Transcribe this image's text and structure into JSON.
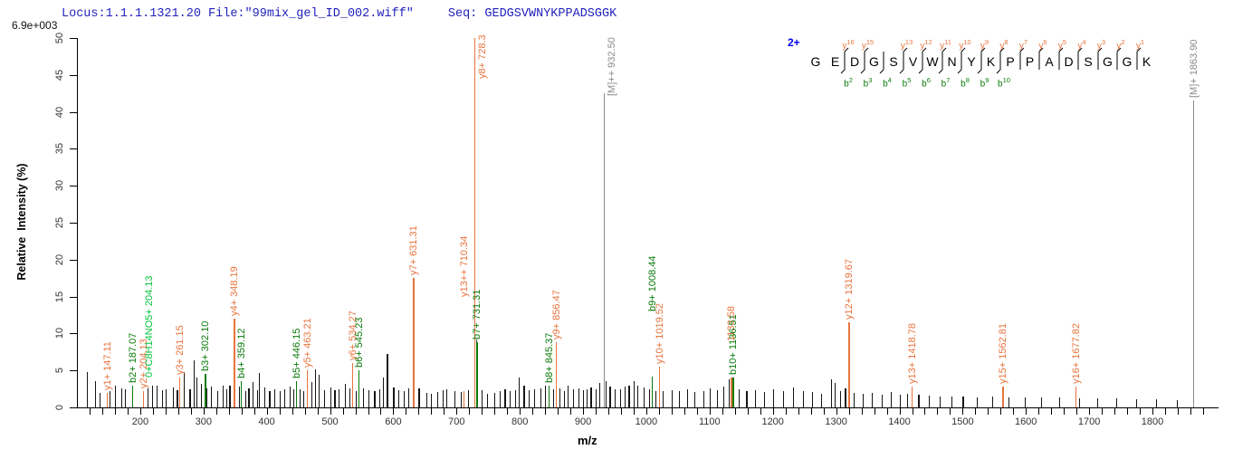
{
  "header": {
    "locus_file": "Locus:1.1.1.1321.20 File:\"99mix_gel_ID_002.wiff\"",
    "seq_text": "Seq: GEDGSVWNYKPPADSGGK",
    "max_intensity": "6.9e+003"
  },
  "axes": {
    "y_title": "Relative  Intensity (%)",
    "x_title": "m/z",
    "y_ticks": [
      0,
      5,
      10,
      15,
      20,
      25,
      30,
      35,
      40,
      45,
      50
    ],
    "x_labeled_ticks": [
      200,
      300,
      400,
      500,
      600,
      700,
      800,
      900,
      1000,
      1100,
      1200,
      1300,
      1400,
      1500,
      1600,
      1700,
      1800
    ],
    "x_minor_step": 20,
    "x_range": [
      100,
      1893
    ],
    "y_range": [
      0,
      50
    ]
  },
  "fragment_diagram": {
    "charge": "2+",
    "residues": [
      "G",
      "E",
      "D",
      "G",
      "S",
      "V",
      "W",
      "N",
      "Y",
      "K",
      "P",
      "P",
      "A",
      "D",
      "S",
      "G",
      "G",
      "K"
    ],
    "cleavages": [
      {
        "after": 2,
        "y": "y16",
        "b": "b2"
      },
      {
        "after": 3,
        "y": "y15",
        "b": "b3"
      },
      {
        "after": 4,
        "y": null,
        "b": "b4"
      },
      {
        "after": 5,
        "y": "y13",
        "b": "b5"
      },
      {
        "after": 6,
        "y": "y12",
        "b": "b6"
      },
      {
        "after": 7,
        "y": "y11",
        "b": "b7"
      },
      {
        "after": 8,
        "y": "y10",
        "b": "b8"
      },
      {
        "after": 9,
        "y": "y9",
        "b": "b9"
      },
      {
        "after": 10,
        "y": "y8",
        "b": "b10"
      },
      {
        "after": 11,
        "y": "y7",
        "b": null
      },
      {
        "after": 12,
        "y": "y6",
        "b": null
      },
      {
        "after": 13,
        "y": "y5",
        "b": null
      },
      {
        "after": 14,
        "y": "y4",
        "b": null
      },
      {
        "after": 15,
        "y": "y3",
        "b": null
      },
      {
        "after": 16,
        "y": "y2",
        "b": null
      },
      {
        "after": 17,
        "y": "y1",
        "b": null
      }
    ]
  },
  "colors": {
    "header_blue": "#2222bb",
    "y_ion_orange": "#e8743e",
    "b_ion_green": "#0a7a0a",
    "formula_lime": "#00c53c",
    "precursor_gray": "#8a8a8a",
    "background_peak": "#151515",
    "charge_blue": "#0000ee"
  },
  "chart_data": {
    "type": "ms2_stick_spectrum",
    "xlabel": "m/z",
    "ylabel": "Relative  Intensity (%)",
    "xlim": [
      100,
      1893
    ],
    "ylim": [
      0,
      50
    ],
    "labeled_peaks": [
      {
        "mz": 147.11,
        "intensity": 2.0,
        "label": "y1+ 147.11",
        "series": "y"
      },
      {
        "mz": 187.07,
        "intensity": 3.0,
        "label": "b2+ 187.07",
        "series": "b"
      },
      {
        "mz": 204.13,
        "intensity": 2.2,
        "label": "y2+ 204.13",
        "series": "y"
      },
      {
        "mz": 213.0,
        "intensity": 0,
        "label": "0+C8H14NO5+ 204.13",
        "series": "other",
        "no_line": true,
        "label_bottom": 4
      },
      {
        "mz": 261.15,
        "intensity": 4.0,
        "label": "y3+ 261.15",
        "series": "y"
      },
      {
        "mz": 302.1,
        "intensity": 4.5,
        "label": "b3+ 302.10",
        "series": "b"
      },
      {
        "mz": 348.19,
        "intensity": 12.0,
        "label": "y4+ 348.19",
        "series": "y"
      },
      {
        "mz": 359.12,
        "intensity": 3.5,
        "label": "b4+ 359.12",
        "series": "b"
      },
      {
        "mz": 446.15,
        "intensity": 3.5,
        "label": "b5+ 446.15",
        "series": "b"
      },
      {
        "mz": 463.21,
        "intensity": 5.0,
        "label": "y5+ 463.21",
        "series": "y"
      },
      {
        "mz": 534.27,
        "intensity": 6.0,
        "label": "y6+ 534.27",
        "series": "y"
      },
      {
        "mz": 545.23,
        "intensity": 5.0,
        "label": "b6+ 545.23",
        "series": "b"
      },
      {
        "mz": 631.31,
        "intensity": 17.5,
        "label": "y7+ 631.31",
        "series": "y"
      },
      {
        "mz": 710.34,
        "intensity": 2.2,
        "label": "y13++ 710.34",
        "series": "y",
        "label_bottom": 15
      },
      {
        "mz": 728.3,
        "intensity": 50.0,
        "label": "y8+ 728.3",
        "series": "y"
      },
      {
        "mz": 730.6,
        "intensity": 9.5,
        "label": null,
        "series": "dashed"
      },
      {
        "mz": 731.31,
        "intensity": 8.8,
        "label": "b7+ 731.31",
        "series": "b"
      },
      {
        "mz": 845.37,
        "intensity": 3.0,
        "label": "b8+ 845.37",
        "series": "b"
      },
      {
        "mz": 856.47,
        "intensity": 8.8,
        "label": "y9+ 856.47",
        "series": "y"
      },
      {
        "mz": 932.5,
        "intensity": 42.5,
        "label": "[M]++ 932.50",
        "series": "precursor"
      },
      {
        "mz": 1008.44,
        "intensity": 4.2,
        "label": "b9+ 1008.44",
        "series": "b",
        "label_bottom": 13
      },
      {
        "mz": 1019.52,
        "intensity": 5.5,
        "label": "y10+ 1019.52",
        "series": "y"
      },
      {
        "mz": 1133.58,
        "intensity": 4.0,
        "label": "1133.58",
        "series": "y",
        "label_bottom": 9
      },
      {
        "mz": 1136.51,
        "intensity": 4.0,
        "label": "b10+ 1136.51",
        "series": "b"
      },
      {
        "mz": 1319.67,
        "intensity": 11.5,
        "label": "y12+ 1319.67",
        "series": "y"
      },
      {
        "mz": 1418.78,
        "intensity": 2.8,
        "label": "y13+ 1418.78",
        "series": "y"
      },
      {
        "mz": 1562.81,
        "intensity": 2.8,
        "label": "y15+ 1562.81",
        "series": "y"
      },
      {
        "mz": 1677.82,
        "intensity": 2.8,
        "label": "y16+ 1677.82",
        "series": "y"
      },
      {
        "mz": 1863.9,
        "intensity": 41.5,
        "label": "[M]+ 1863.90",
        "series": "precursor"
      }
    ],
    "background_peaks": [
      [
        115,
        4.8
      ],
      [
        128,
        3.6
      ],
      [
        136,
        2
      ],
      [
        152,
        2.2
      ],
      [
        160,
        3
      ],
      [
        170,
        2.6
      ],
      [
        176,
        2.4
      ],
      [
        212,
        2.6
      ],
      [
        219,
        3
      ],
      [
        226,
        2.9
      ],
      [
        234,
        2.3
      ],
      [
        240,
        2.4
      ],
      [
        252,
        2.7
      ],
      [
        258,
        2.3
      ],
      [
        269,
        4.8
      ],
      [
        278,
        2.4
      ],
      [
        284,
        6.4
      ],
      [
        289,
        4.1
      ],
      [
        296,
        3.2
      ],
      [
        305,
        2.6
      ],
      [
        312,
        2.8
      ],
      [
        322,
        2.2
      ],
      [
        330,
        3
      ],
      [
        336,
        2.4
      ],
      [
        341,
        3
      ],
      [
        356,
        2.8
      ],
      [
        366,
        2.2
      ],
      [
        371,
        2.6
      ],
      [
        377,
        3.4
      ],
      [
        384,
        2.3
      ],
      [
        388,
        4.7
      ],
      [
        396,
        2.7
      ],
      [
        404,
        2.2
      ],
      [
        412,
        2.4
      ],
      [
        420,
        2.2
      ],
      [
        428,
        2.5
      ],
      [
        436,
        2.8
      ],
      [
        442,
        2.4
      ],
      [
        452,
        2.5
      ],
      [
        458,
        2.2
      ],
      [
        470,
        3.4
      ],
      [
        476,
        5.2
      ],
      [
        482,
        4.4
      ],
      [
        490,
        2.3
      ],
      [
        500,
        2.7
      ],
      [
        507,
        2.3
      ],
      [
        514,
        2.4
      ],
      [
        524,
        3.2
      ],
      [
        530,
        2.6
      ],
      [
        540,
        2.2
      ],
      [
        552,
        2.6
      ],
      [
        560,
        2.3
      ],
      [
        570,
        2.2
      ],
      [
        578,
        2.5
      ],
      [
        584,
        4
      ],
      [
        590,
        7.2
      ],
      [
        600,
        2.7
      ],
      [
        608,
        2.3
      ],
      [
        616,
        2.2
      ],
      [
        624,
        2.6
      ],
      [
        640,
        2.6
      ],
      [
        652,
        2
      ],
      [
        660,
        1.9
      ],
      [
        670,
        2.1
      ],
      [
        678,
        2.3
      ],
      [
        684,
        2.4
      ],
      [
        696,
        2.2
      ],
      [
        706,
        2.1
      ],
      [
        718,
        2.3
      ],
      [
        740,
        2.3
      ],
      [
        748,
        1.8
      ],
      [
        760,
        2
      ],
      [
        768,
        2.2
      ],
      [
        776,
        2.5
      ],
      [
        784,
        2.2
      ],
      [
        792,
        2.3
      ],
      [
        798,
        4
      ],
      [
        806,
        3
      ],
      [
        814,
        2.3
      ],
      [
        822,
        2.4
      ],
      [
        832,
        2.6
      ],
      [
        840,
        3
      ],
      [
        852,
        2.5
      ],
      [
        862,
        2.6
      ],
      [
        870,
        2.2
      ],
      [
        876,
        2.9
      ],
      [
        884,
        2.4
      ],
      [
        893,
        2.6
      ],
      [
        900,
        2.3
      ],
      [
        906,
        2.4
      ],
      [
        912,
        2.7
      ],
      [
        920,
        2.5
      ],
      [
        926,
        3.3
      ],
      [
        936,
        3.6
      ],
      [
        942,
        2.8
      ],
      [
        950,
        2.5
      ],
      [
        958,
        2.4
      ],
      [
        966,
        2.8
      ],
      [
        972,
        3
      ],
      [
        980,
        3.6
      ],
      [
        986,
        2.9
      ],
      [
        996,
        2.7
      ],
      [
        1004,
        2.4
      ],
      [
        1014,
        2.2
      ],
      [
        1026,
        2.2
      ],
      [
        1040,
        2.3
      ],
      [
        1052,
        2.2
      ],
      [
        1064,
        2.4
      ],
      [
        1076,
        2.1
      ],
      [
        1090,
        2.2
      ],
      [
        1100,
        2.6
      ],
      [
        1112,
        2.3
      ],
      [
        1122,
        2.8
      ],
      [
        1130,
        3.8
      ],
      [
        1146,
        2.4
      ],
      [
        1158,
        2.2
      ],
      [
        1172,
        2.3
      ],
      [
        1186,
        2.1
      ],
      [
        1200,
        2.4
      ],
      [
        1216,
        2.2
      ],
      [
        1232,
        2.7
      ],
      [
        1248,
        2.2
      ],
      [
        1262,
        2.1
      ],
      [
        1276,
        1.9
      ],
      [
        1292,
        3.8
      ],
      [
        1298,
        3.3
      ],
      [
        1306,
        2.2
      ],
      [
        1314,
        2.6
      ],
      [
        1328,
        2
      ],
      [
        1342,
        1.8
      ],
      [
        1356,
        2
      ],
      [
        1372,
        1.7
      ],
      [
        1386,
        2.1
      ],
      [
        1400,
        1.7
      ],
      [
        1412,
        1.8
      ],
      [
        1430,
        1.7
      ],
      [
        1446,
        1.6
      ],
      [
        1464,
        1.5
      ],
      [
        1482,
        1.5
      ],
      [
        1500,
        1.5
      ],
      [
        1522,
        1.4
      ],
      [
        1546,
        1.5
      ],
      [
        1572,
        1.4
      ],
      [
        1598,
        1.3
      ],
      [
        1624,
        1.3
      ],
      [
        1652,
        1.3
      ],
      [
        1684,
        1.2
      ],
      [
        1712,
        1.2
      ],
      [
        1742,
        1.2
      ],
      [
        1774,
        1.1
      ],
      [
        1806,
        1.1
      ],
      [
        1838,
        1
      ]
    ]
  }
}
